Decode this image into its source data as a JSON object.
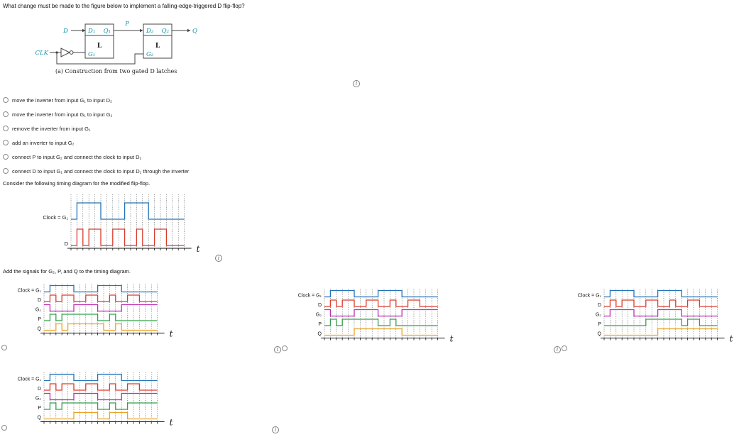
{
  "question": "What change must be made to the figure below to implement a falling-edge-triggered D flip-flop?",
  "figure": {
    "caption": "(a) Construction from two gated D latches",
    "labels": {
      "d": "D",
      "clk": "CLK",
      "p": "P",
      "q": "Q",
      "d1": "D₁",
      "q1": "Q₁",
      "g1": "G₁",
      "l1": "L",
      "d2": "D₂",
      "q2": "Q₂",
      "g2": "G₂",
      "l2": "L"
    }
  },
  "options": [
    "move the inverter from input G₁ to input D₂",
    "move the inverter from input G₁ to input G₂",
    "remove the inverter from input G₁",
    "add an inverter to input G₂",
    "connect P to input G₂ and connect the clock to input D₂",
    "connect D to input G₁ and connect the clock to input D₁ through the inverter"
  ],
  "texts": {
    "consider": "Consider the following timing diagram for the modified flip-flop.",
    "add": "Add the signals for G₂, P, and Q to the timing diagram.",
    "time_label": "t",
    "info_glyph": "i"
  },
  "colors": {
    "blue": "#2273b8",
    "red": "#d93a2b",
    "magenta": "#c02cb4",
    "green": "#33a04a",
    "orange": "#e8a427",
    "circuit_label": "#0e93ab"
  },
  "diagrams": {
    "main": {
      "signals": [
        {
          "label": "Clock = G₁",
          "color": "blue",
          "values": [
            0,
            1,
            1,
            1,
            1,
            0,
            0,
            0,
            0,
            1,
            1,
            1,
            1,
            0,
            0,
            0,
            0,
            0,
            0
          ]
        },
        {
          "label": "D",
          "color": "red",
          "values": [
            0,
            1,
            0,
            1,
            1,
            0,
            0,
            1,
            1,
            0,
            0,
            1,
            0,
            0,
            1,
            1,
            0,
            0,
            0
          ]
        }
      ]
    },
    "optA": {
      "signals": [
        {
          "label": "Clock = G₁",
          "color": "blue",
          "values": [
            0,
            1,
            1,
            1,
            1,
            0,
            0,
            0,
            0,
            1,
            1,
            1,
            1,
            0,
            0,
            0,
            0,
            0,
            0
          ]
        },
        {
          "label": "D",
          "color": "red",
          "values": [
            0,
            1,
            0,
            1,
            1,
            0,
            0,
            1,
            1,
            0,
            0,
            1,
            0,
            0,
            1,
            1,
            0,
            0,
            0
          ]
        },
        {
          "label": "G₂",
          "color": "magenta",
          "values": [
            1,
            0,
            0,
            0,
            0,
            1,
            1,
            1,
            1,
            0,
            0,
            0,
            0,
            1,
            1,
            1,
            1,
            1,
            1
          ]
        },
        {
          "label": "P",
          "color": "green",
          "values": [
            0,
            1,
            0,
            1,
            1,
            1,
            1,
            1,
            1,
            0,
            0,
            1,
            0,
            0,
            0,
            0,
            0,
            0,
            0
          ]
        },
        {
          "label": "Q",
          "color": "orange",
          "values": [
            0,
            0,
            1,
            0,
            1,
            1,
            1,
            1,
            1,
            1,
            0,
            0,
            1,
            0,
            0,
            0,
            0,
            0,
            0
          ]
        }
      ]
    },
    "optB": {
      "signals": [
        {
          "label": "Clock = G₁",
          "color": "blue",
          "values": [
            0,
            1,
            1,
            1,
            1,
            0,
            0,
            0,
            0,
            1,
            1,
            1,
            1,
            0,
            0,
            0,
            0,
            0,
            0
          ]
        },
        {
          "label": "D",
          "color": "red",
          "values": [
            0,
            1,
            0,
            1,
            1,
            0,
            0,
            1,
            1,
            0,
            0,
            1,
            0,
            0,
            1,
            1,
            0,
            0,
            0
          ]
        },
        {
          "label": "G₂",
          "color": "magenta",
          "values": [
            1,
            0,
            0,
            0,
            0,
            1,
            1,
            1,
            1,
            0,
            0,
            0,
            0,
            1,
            1,
            1,
            1,
            1,
            1
          ]
        },
        {
          "label": "P",
          "color": "green",
          "values": [
            0,
            1,
            0,
            1,
            1,
            1,
            1,
            1,
            1,
            0,
            0,
            1,
            0,
            0,
            0,
            0,
            0,
            0,
            0
          ]
        },
        {
          "label": "Q",
          "color": "orange",
          "values": [
            0,
            0,
            0,
            0,
            0,
            1,
            1,
            1,
            1,
            1,
            1,
            1,
            1,
            0,
            0,
            0,
            0,
            0,
            0
          ]
        }
      ]
    },
    "optC": {
      "signals": [
        {
          "label": "Clock = G₁",
          "color": "blue",
          "values": [
            0,
            1,
            1,
            1,
            1,
            0,
            0,
            0,
            0,
            1,
            1,
            1,
            1,
            0,
            0,
            0,
            0,
            0,
            0
          ]
        },
        {
          "label": "D",
          "color": "red",
          "values": [
            0,
            1,
            0,
            1,
            1,
            0,
            0,
            1,
            1,
            0,
            0,
            1,
            0,
            0,
            1,
            1,
            0,
            0,
            0
          ]
        },
        {
          "label": "G₂",
          "color": "magenta",
          "values": [
            0,
            1,
            1,
            1,
            1,
            0,
            0,
            0,
            0,
            1,
            1,
            1,
            1,
            0,
            0,
            0,
            0,
            0,
            0
          ]
        },
        {
          "label": "P",
          "color": "green",
          "values": [
            0,
            0,
            0,
            0,
            0,
            0,
            0,
            1,
            1,
            1,
            1,
            1,
            1,
            0,
            1,
            1,
            0,
            0,
            0
          ]
        },
        {
          "label": "Q",
          "color": "orange",
          "values": [
            0,
            0,
            0,
            0,
            0,
            0,
            0,
            0,
            0,
            1,
            1,
            1,
            1,
            1,
            1,
            1,
            1,
            1,
            1
          ]
        }
      ]
    },
    "optD": {
      "signals": [
        {
          "label": "Clock = G₁",
          "color": "blue",
          "values": [
            0,
            1,
            1,
            1,
            1,
            0,
            0,
            0,
            0,
            1,
            1,
            1,
            1,
            0,
            0,
            0,
            0,
            0,
            0
          ]
        },
        {
          "label": "D",
          "color": "red",
          "values": [
            0,
            1,
            0,
            1,
            1,
            0,
            0,
            1,
            1,
            0,
            0,
            1,
            0,
            0,
            1,
            1,
            0,
            0,
            0
          ]
        },
        {
          "label": "G₂",
          "color": "magenta",
          "values": [
            1,
            0,
            0,
            0,
            0,
            1,
            1,
            1,
            1,
            0,
            0,
            0,
            0,
            1,
            1,
            1,
            1,
            1,
            1
          ]
        },
        {
          "label": "P",
          "color": "green",
          "values": [
            0,
            1,
            0,
            1,
            1,
            1,
            1,
            1,
            1,
            0,
            0,
            1,
            0,
            0,
            1,
            1,
            1,
            1,
            1
          ]
        },
        {
          "label": "Q",
          "color": "orange",
          "values": [
            0,
            0,
            0,
            0,
            0,
            1,
            1,
            1,
            1,
            0,
            0,
            1,
            1,
            1,
            0,
            0,
            0,
            0,
            0
          ]
        }
      ]
    }
  }
}
